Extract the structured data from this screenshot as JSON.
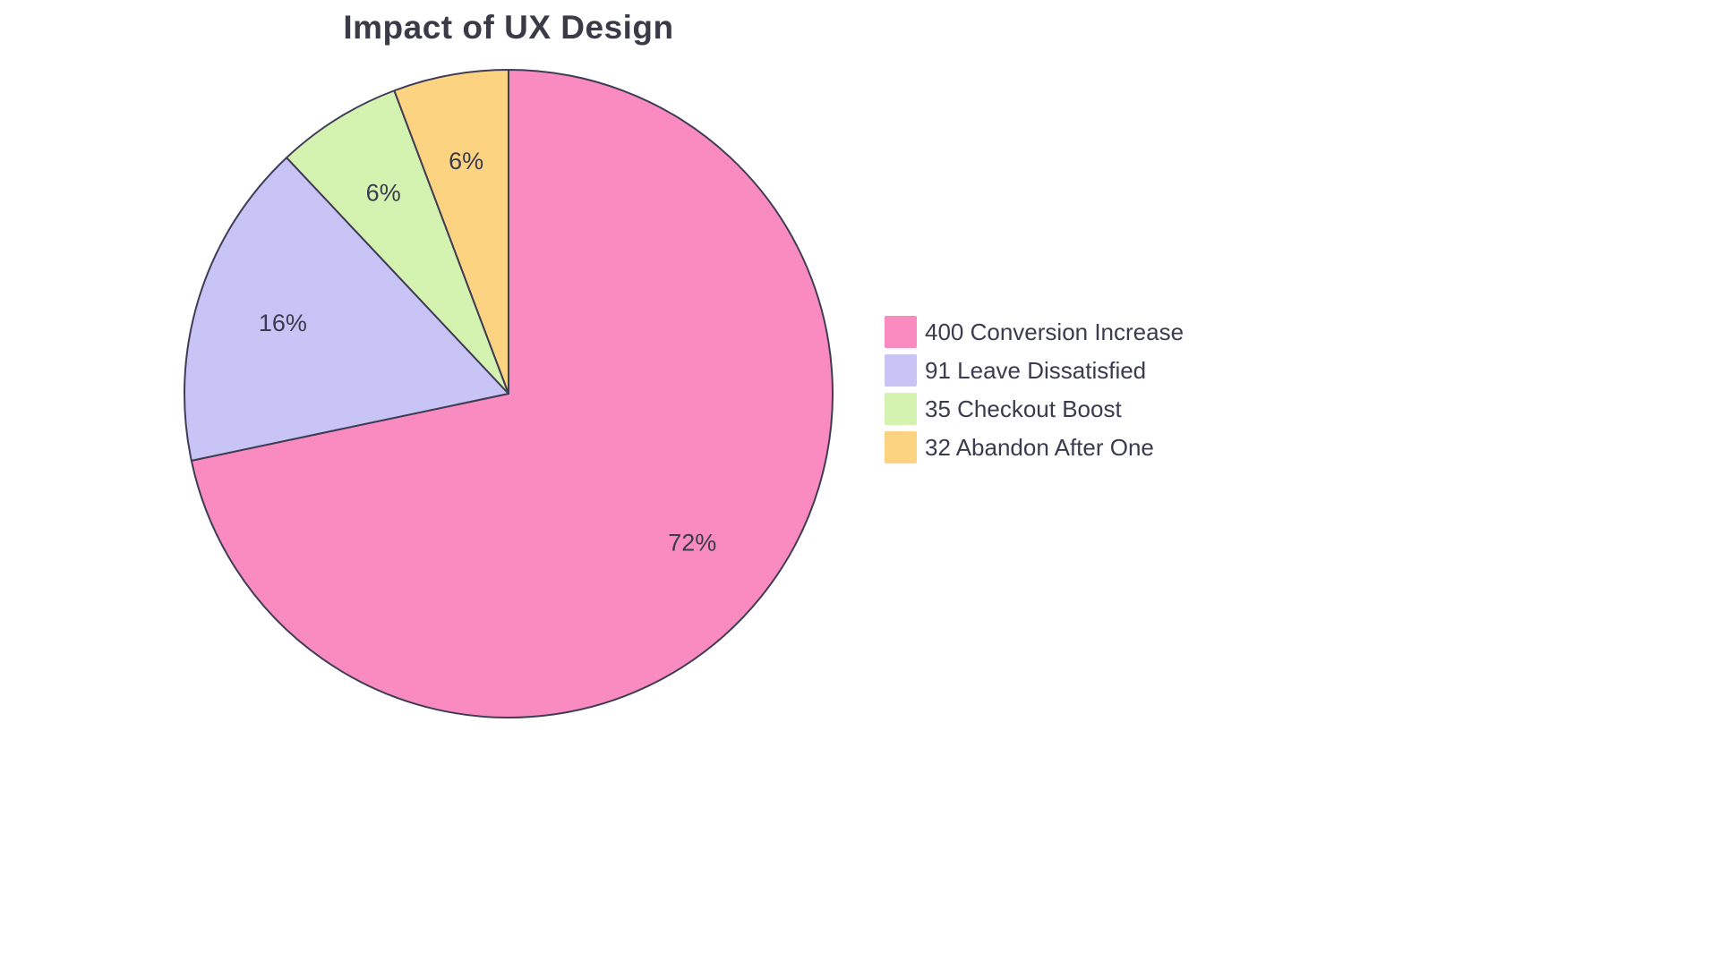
{
  "chart_data": {
    "type": "pie",
    "title": "Impact of UX Design",
    "labels": [
      "400 Conversion Increase",
      "91 Leave Dissatisfied",
      "35 Checkout Boost",
      "32 Abandon After One"
    ],
    "values": [
      400,
      91,
      35,
      32
    ],
    "percent_labels": [
      "72%",
      "16%",
      "6%",
      "6%"
    ],
    "colors": [
      "#F98BC1",
      "#C8C4F5",
      "#D4F3B0",
      "#FBD381"
    ],
    "outline_color": "#3F3D56",
    "label_text_color": "#3B3B4F",
    "title_text_color": "#3A3B47",
    "legend_position": "right",
    "start_angle_deg": 0,
    "direction": "clockwise"
  }
}
